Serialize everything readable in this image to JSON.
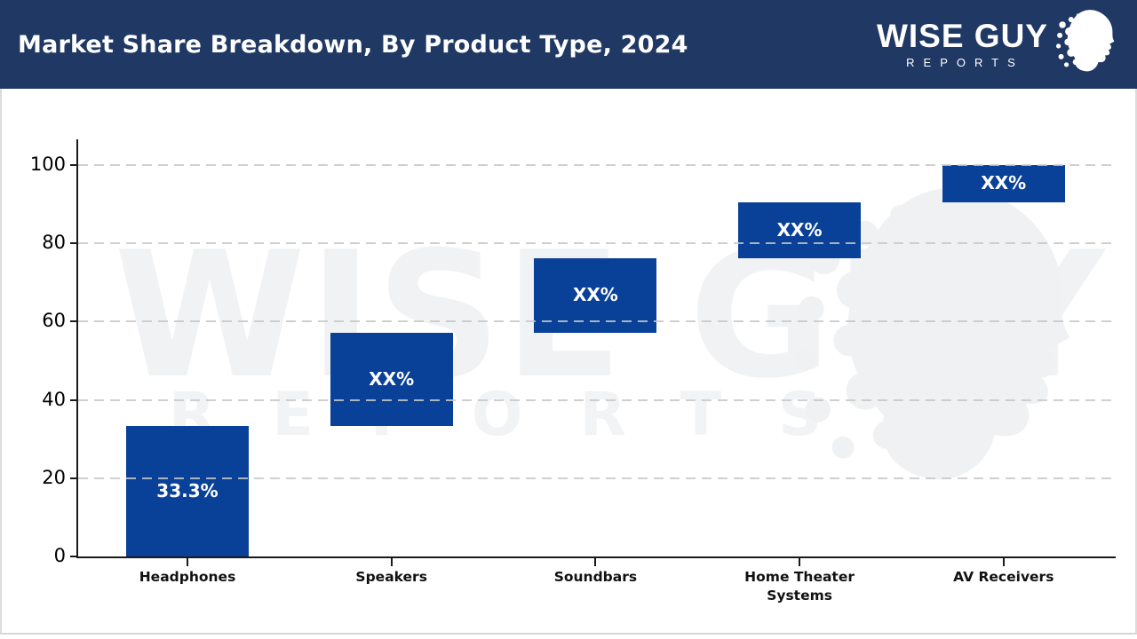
{
  "header": {
    "title": "Market Share Breakdown, By Product Type, 2024",
    "logo": {
      "line1": "WISE GUY",
      "line2": "REPORTS"
    }
  },
  "watermark": {
    "line1": "WISE GUY",
    "line2": "REPORTS"
  },
  "chart_data": {
    "type": "bar",
    "subtype": "waterfall",
    "title": "Market Share Breakdown, By Product Type, 2024",
    "categories": [
      "Headphones",
      "Speakers",
      "Soundbars",
      "Home Theater Systems",
      "AV Receivers"
    ],
    "segments": [
      {
        "category": "Headphones",
        "start": 0,
        "end": 33.3,
        "label": "33.3%"
      },
      {
        "category": "Speakers",
        "start": 33.3,
        "end": 57.1,
        "label": "XX%"
      },
      {
        "category": "Soundbars",
        "start": 57.1,
        "end": 76.2,
        "label": "XX%"
      },
      {
        "category": "Home Theater Systems",
        "start": 76.2,
        "end": 90.4,
        "label": "XX%"
      },
      {
        "category": "AV Receivers",
        "start": 90.4,
        "end": 100,
        "label": "XX%"
      }
    ],
    "yticks": [
      0,
      20,
      40,
      60,
      80,
      100
    ],
    "ylim": [
      0,
      106
    ],
    "xlabel": "",
    "ylabel": "",
    "grid": "horizontal dashed",
    "legend": "none",
    "bar_color": "#0a4198",
    "bar_label_color": "#ffffff"
  },
  "colors": {
    "header_bg": "#203864",
    "bar": "#0a4198",
    "grid": "#c7c7c7",
    "axis": "#1a1a1a",
    "watermark": "#f1f2f4"
  }
}
